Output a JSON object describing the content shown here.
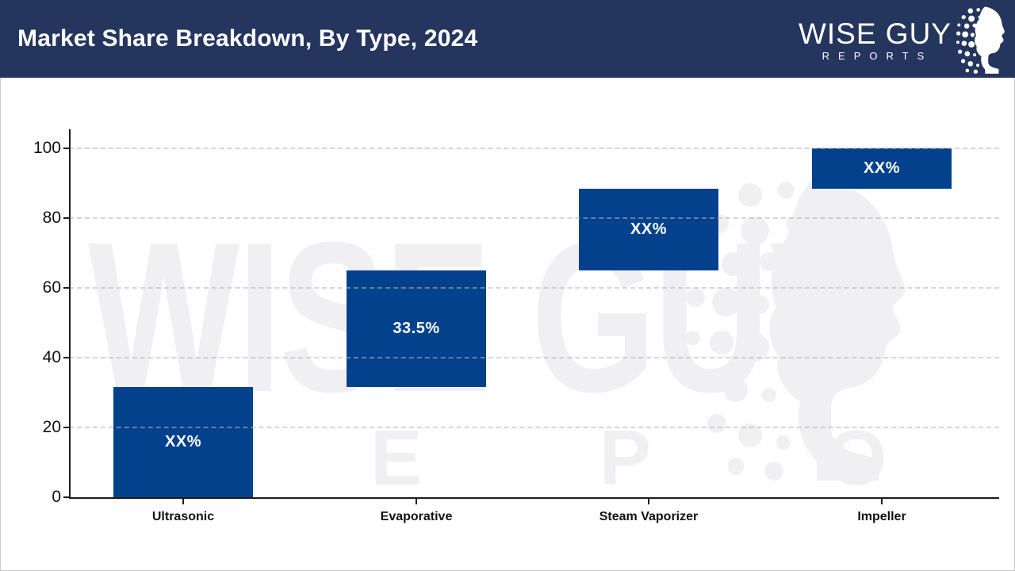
{
  "header": {
    "title": "Market Share Breakdown, By Type, 2024",
    "logo": {
      "wordmark": "WISE GUY",
      "subtext": "REPORTS"
    }
  },
  "watermark": {
    "line1": "WISE GUY",
    "line2": "R E P O R T S"
  },
  "colors": {
    "header_bg": "#24355E",
    "bar_fill": "#04418D",
    "watermark_gray": "#F0F0F2",
    "axis": "#1C1C1C",
    "gridline": "#D8D8D8"
  },
  "chart_data": {
    "type": "bar",
    "variant": "floating-waterfall",
    "title": "Market Share Breakdown, By Type, 2024",
    "categories": [
      "Ultrasonic",
      "Evaporative",
      "Steam Vaporizer",
      "Impeller"
    ],
    "segments": [
      {
        "category": "Ultrasonic",
        "label": "XX%",
        "start": 0,
        "end": 31.5,
        "height": 31.5
      },
      {
        "category": "Evaporative",
        "label": "33.5%",
        "start": 31.5,
        "end": 65,
        "height": 33.5
      },
      {
        "category": "Steam Vaporizer",
        "label": "XX%",
        "start": 65,
        "end": 88.5,
        "height": 23.5
      },
      {
        "category": "Impeller",
        "label": "XX%",
        "start": 88.5,
        "end": 100,
        "height": 11.5
      }
    ],
    "yticks": [
      0,
      20,
      40,
      60,
      80,
      100
    ],
    "ylim": [
      0,
      100
    ],
    "xlabel": "",
    "ylabel": "",
    "grid": "horizontal-dashed",
    "legend": "none"
  }
}
